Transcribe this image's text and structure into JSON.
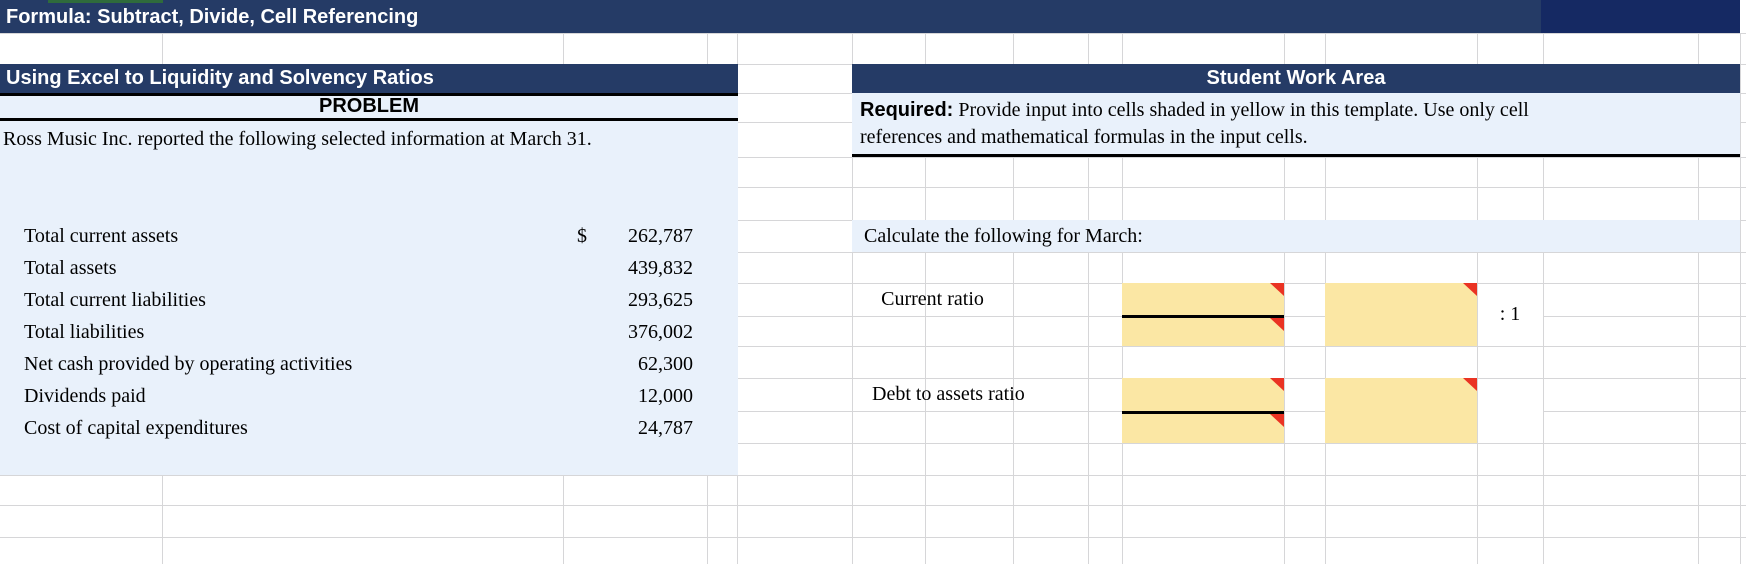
{
  "title_bar": {
    "text": "Formula: Subtract, Divide, Cell Referencing"
  },
  "left_panel": {
    "header": "Using Excel to Liquidity and Solvency Ratios",
    "subheader": "PROBLEM",
    "description": "Ross Music Inc. reported the following selected information at March 31.",
    "rows": [
      {
        "label": "Total current assets",
        "currency": "$",
        "value": "262,787"
      },
      {
        "label": "Total assets",
        "currency": "",
        "value": "439,832"
      },
      {
        "label": "Total current liabilities",
        "currency": "",
        "value": "293,625"
      },
      {
        "label": "Total liabilities",
        "currency": "",
        "value": "376,002"
      },
      {
        "label": "Net cash provided by operating activities",
        "currency": "",
        "value": "62,300"
      },
      {
        "label": "Dividends paid",
        "currency": "",
        "value": "12,000"
      },
      {
        "label": "Cost of capital expenditures",
        "currency": "",
        "value": "24,787"
      }
    ]
  },
  "right_panel": {
    "header": "Student Work Area",
    "required_label": "Required:",
    "required_lines": [
      " Provide input into cells shaded in yellow in this template. Use only cell",
      "references and mathematical formulas in the input cells."
    ],
    "calculate_heading": "Calculate the following for March:",
    "ratios": [
      {
        "label": "Current ratio",
        "suffix": ": 1"
      },
      {
        "label": "Debt to assets ratio",
        "suffix": ""
      }
    ],
    "input_cell_values": {
      "current_ratio_numerator": "",
      "current_ratio_denominator": "",
      "current_ratio_result": "",
      "debt_to_assets_numerator": "",
      "debt_to_assets_denominator": "",
      "debt_to_assets_result": ""
    }
  },
  "colors": {
    "header_navy": "#253B66",
    "title_dark_navy": "#152963",
    "accent_green": "#2F6B3C",
    "panel_light_blue": "#E9F1FB",
    "input_yellow": "#FBE7A4",
    "comment_red": "#EA3323",
    "gridline_gray": "#D6D6D8"
  }
}
